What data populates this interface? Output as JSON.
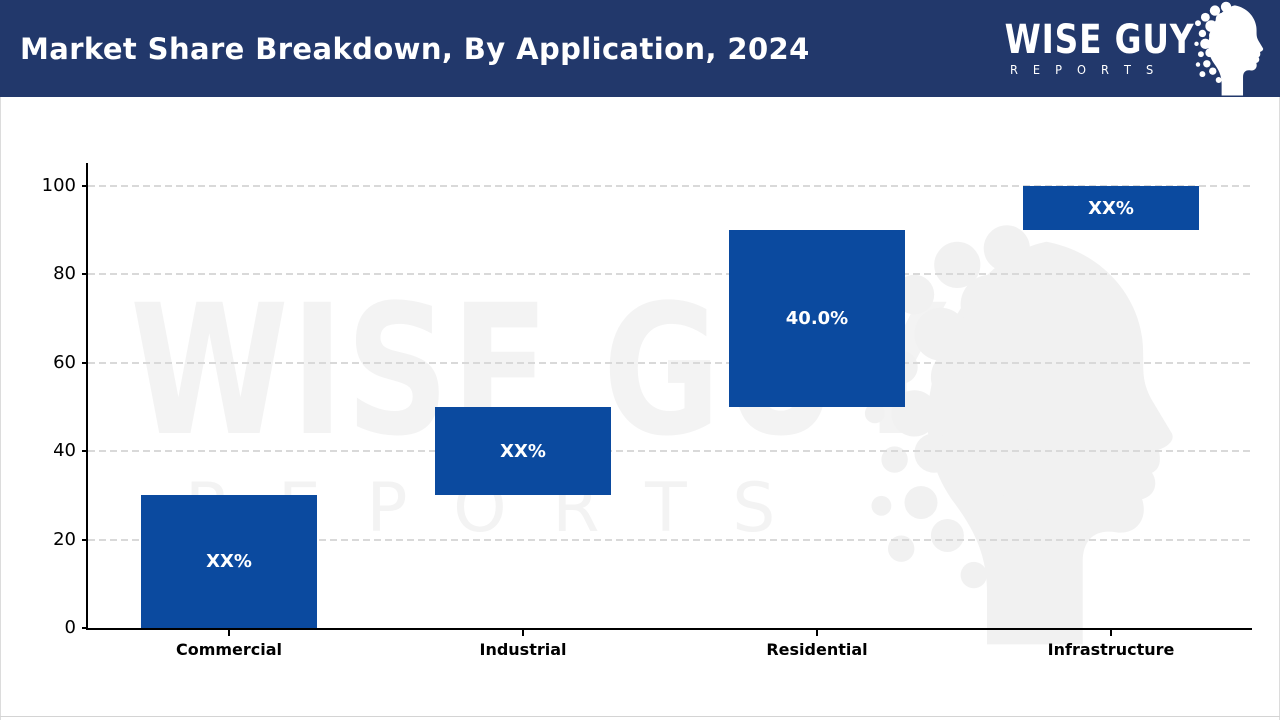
{
  "header": {
    "title": "Market Share Breakdown, By Application, 2024",
    "bg_color": "#22386b",
    "logo": {
      "line1": "WISE GUY",
      "line2": "R E P O R T S"
    }
  },
  "watermark": {
    "line1": "WISE GUY",
    "line2": "R E P O R T S"
  },
  "chart_data": {
    "type": "bar",
    "subtype": "floating-waterfall",
    "title": "",
    "xlabel": "",
    "ylabel": "",
    "categories": [
      "Commercial",
      "Industrial",
      "Residential",
      "Infrastructure"
    ],
    "segments": [
      {
        "category": "Commercial",
        "start": 0,
        "end": 30,
        "label": "XX%"
      },
      {
        "category": "Industrial",
        "start": 30,
        "end": 50,
        "label": "XX%"
      },
      {
        "category": "Residential",
        "start": 50,
        "end": 90,
        "label": "40.0%"
      },
      {
        "category": "Infrastructure",
        "start": 90,
        "end": 100,
        "label": "XX%"
      }
    ],
    "ylim": [
      0,
      100
    ],
    "yticks": [
      0,
      20,
      40,
      60,
      80,
      100
    ],
    "grid": "horizontal-dashed",
    "legend": null,
    "colors": {
      "bar": "#0b4a9f",
      "bar_label": "#ffffff",
      "grid": "#d9d9d9",
      "axis": "#000000",
      "watermark": "#f3f3f3"
    }
  }
}
